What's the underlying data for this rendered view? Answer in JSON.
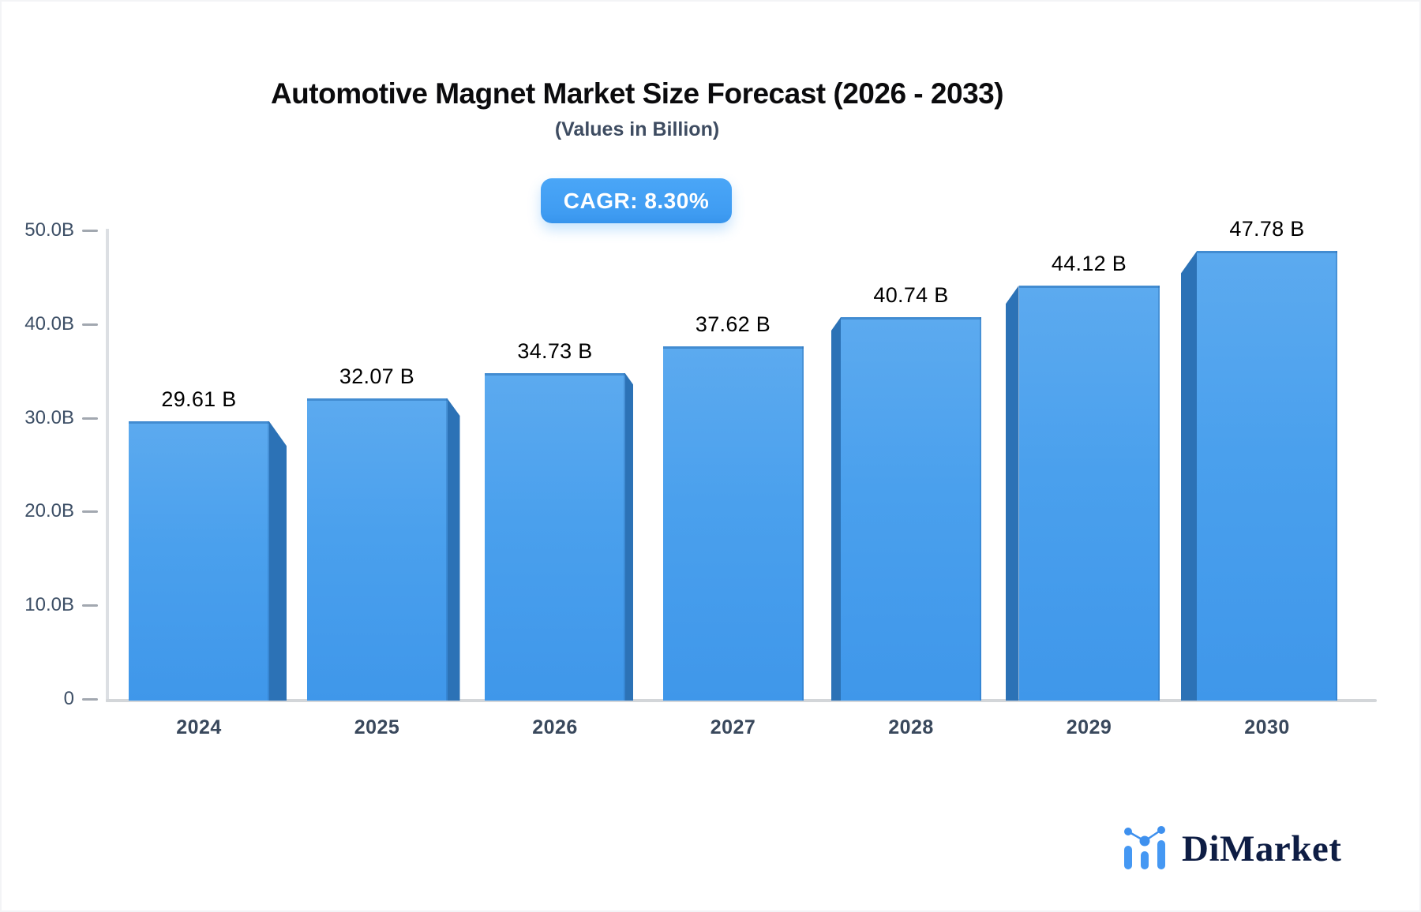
{
  "header": {
    "title": "Automotive Magnet Market Size Forecast (2026 - 2033)",
    "subtitle": "(Values in Billion)"
  },
  "badge": {
    "label": "CAGR: 8.30%",
    "color": "#42a1f5"
  },
  "chart_data": {
    "type": "bar",
    "title": "Automotive Magnet Market Size Forecast (2026 - 2033)",
    "subtitle": "(Values in Billion)",
    "cagr_label": "CAGR: 8.30%",
    "categories": [
      "2024",
      "2025",
      "2026",
      "2027",
      "2028",
      "2029",
      "2030"
    ],
    "values": [
      29.61,
      32.07,
      34.73,
      37.62,
      40.74,
      44.12,
      47.78
    ],
    "value_labels": [
      "29.61 B",
      "32.07 B",
      "34.73 B",
      "37.62 B",
      "40.74 B",
      "44.12 B",
      "47.78 B"
    ],
    "unit": "Billion",
    "ylim": [
      0,
      50
    ],
    "yticks": [
      {
        "value": 0,
        "label": "0"
      },
      {
        "value": 10,
        "label": "10.0B"
      },
      {
        "value": 20,
        "label": "20.0B"
      },
      {
        "value": 30,
        "label": "30.0B"
      },
      {
        "value": 40,
        "label": "40.0B"
      },
      {
        "value": 50,
        "label": "50.0B"
      }
    ],
    "grid": false,
    "legend": false,
    "colors": {
      "bar_face_top": "#5caaef",
      "bar_face_bottom": "#3f97ea",
      "bar_side": "#2c72b6",
      "axis": "#d3d6d9",
      "tick_text": "#3d4f66",
      "value_text": "#000000"
    }
  },
  "footer": {
    "logo_text": "DiMarket",
    "logo_icon": "bar-chart-trend-icon"
  }
}
